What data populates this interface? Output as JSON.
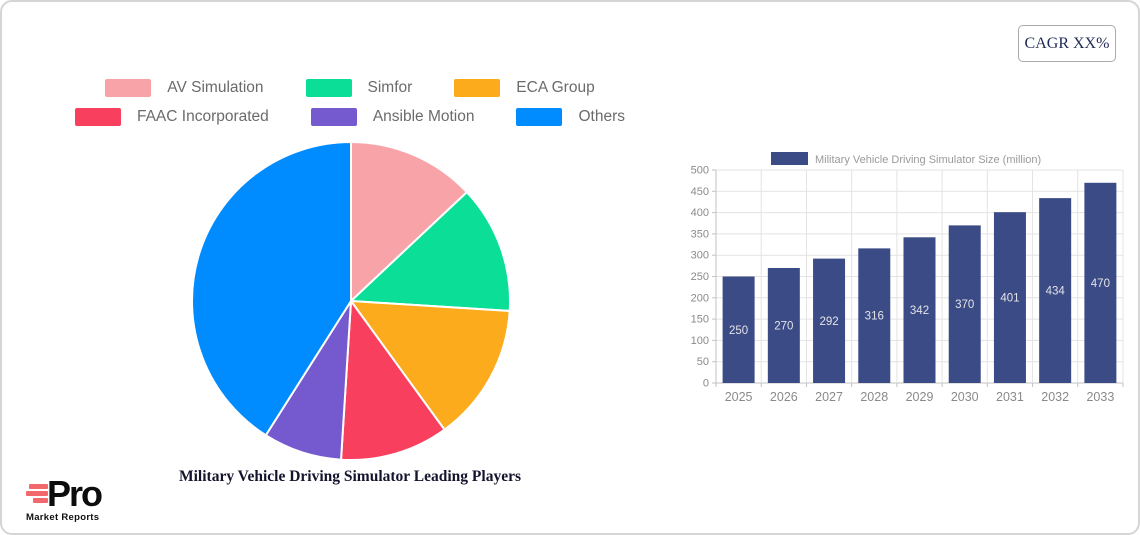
{
  "page": {
    "cagr_badge": "CAGR XX%"
  },
  "logo": {
    "brand": "Pro",
    "tagline": "Market Reports",
    "accent_color": "#f2686c"
  },
  "chart_data": [
    {
      "type": "pie",
      "title": "Military Vehicle Driving Simulator Leading Players",
      "labels": [
        "AV Simulation",
        "Simfor",
        "ECA Group",
        "FAAC Incorporated",
        "Ansible Motion",
        "Others"
      ],
      "values": [
        13,
        13,
        14,
        11,
        8,
        41
      ],
      "colors": [
        "#F8A3A8",
        "#0BDE96",
        "#FBAB1C",
        "#F93F5E",
        "#7559CE",
        "#008CFF"
      ],
      "start_angle_deg": 0,
      "direction": "clockwise",
      "legend_position": "top",
      "legend_rows": [
        [
          0,
          1,
          2
        ],
        [
          3,
          4,
          5
        ]
      ]
    },
    {
      "type": "bar",
      "legend_label": "Military Vehicle Driving Simulator Size (million)",
      "categories": [
        "2025",
        "2026",
        "2027",
        "2028",
        "2029",
        "2030",
        "2031",
        "2032",
        "2033"
      ],
      "values": [
        250,
        270,
        292,
        316,
        342,
        370,
        401,
        434,
        470
      ],
      "bar_color": "#3B4B86",
      "value_label_color": "#E3E3E8",
      "axis_label_color": "#8a8a8a",
      "grid_color": "#e3e3e3",
      "axis_line_color": "#c2c2c2",
      "legend_text_color": "#9a9a9a",
      "ylim": [
        0,
        500
      ],
      "ytick_step": 50,
      "grid": true,
      "value_labels": "inside-middle"
    }
  ]
}
